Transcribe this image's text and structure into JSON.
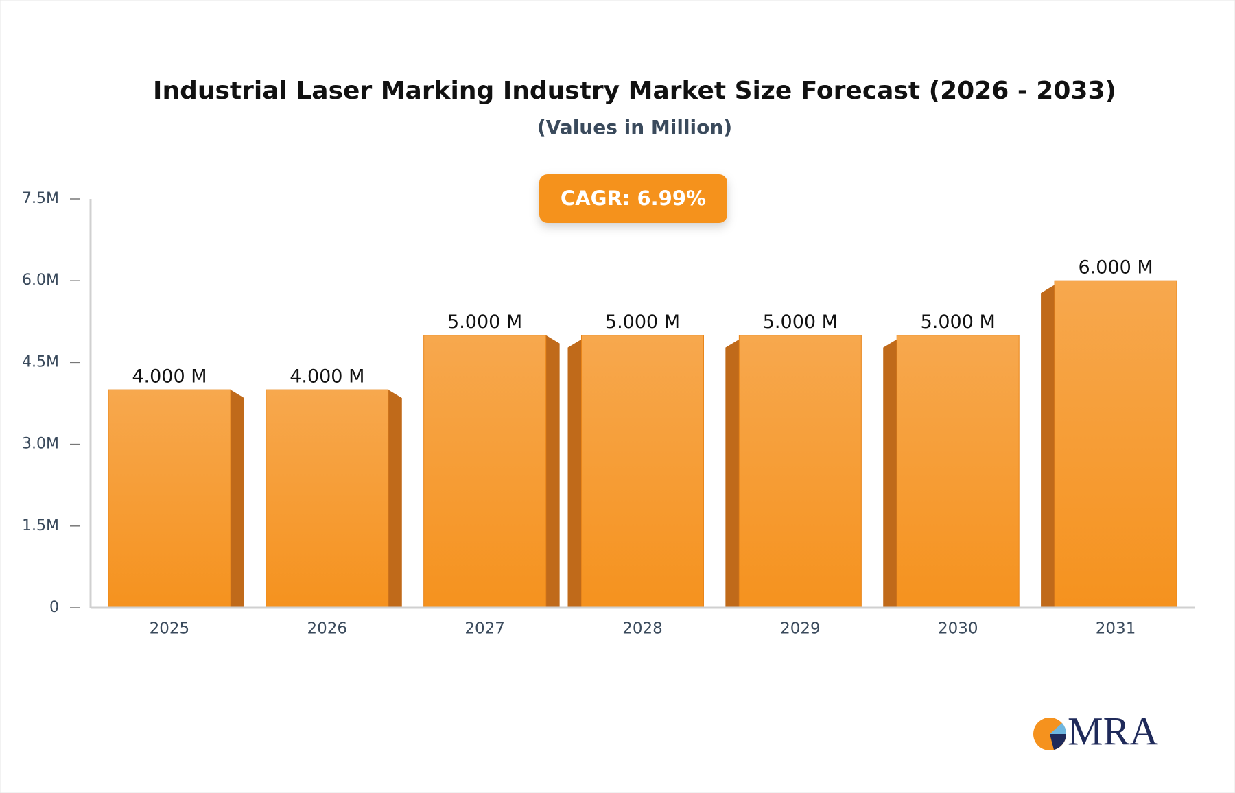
{
  "chart_data": {
    "type": "bar",
    "title": "Industrial Laser Marking Industry Market Size Forecast (2026 - 2033)",
    "subtitle": "(Values in Million)",
    "annotation": "CAGR: 6.99%",
    "logo": "MRA",
    "categories": [
      "2025",
      "2026",
      "2027",
      "2028",
      "2029",
      "2030",
      "2031"
    ],
    "values": [
      4,
      4,
      5,
      5,
      5,
      5,
      6
    ],
    "value_labels": [
      "4.000 M",
      "4.000 M",
      "5.000 M",
      "5.000 M",
      "5.000 M",
      "5.000 M",
      "6.000 M"
    ],
    "color": "#f5921e",
    "ylim": [
      0,
      7.5
    ],
    "yticks": [
      0,
      {
        "value": 1.5,
        "label": "1.5M"
      },
      {
        "value": 3,
        "label": "3.0M"
      },
      {
        "value": 4.5,
        "label": "4.5M"
      },
      {
        "value": 6,
        "label": "6.0M"
      },
      {
        "value": 7.5,
        "label": "7.5M"
      }
    ],
    "grid": false
  }
}
